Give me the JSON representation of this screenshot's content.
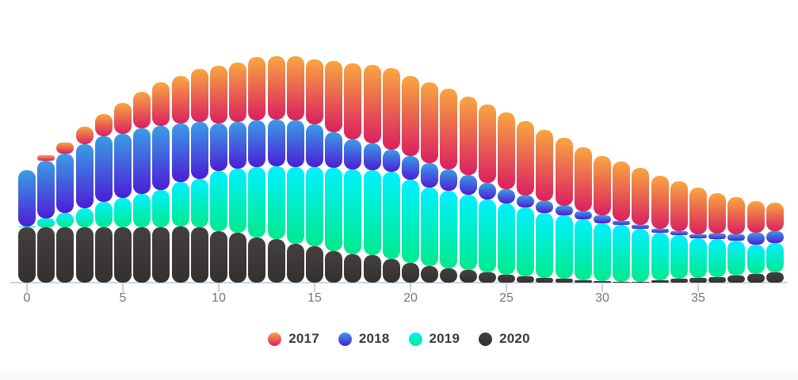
{
  "chart_data": {
    "type": "bar",
    "stacked": true,
    "title": "",
    "xlabel": "",
    "ylabel": "",
    "x": [
      0,
      1,
      2,
      3,
      4,
      5,
      6,
      7,
      8,
      9,
      10,
      11,
      12,
      13,
      14,
      15,
      16,
      17,
      18,
      19,
      20,
      21,
      22,
      23,
      24,
      25,
      26,
      27,
      28,
      29,
      30,
      31,
      32,
      33,
      34,
      35,
      36,
      37,
      38,
      39
    ],
    "x_tick_labels": [
      "0",
      "5",
      "10",
      "15",
      "20",
      "25",
      "30",
      "35"
    ],
    "x_tick_positions": [
      0,
      5,
      10,
      15,
      20,
      25,
      30,
      35
    ],
    "y_axis_visible": false,
    "ylim": [
      0,
      290
    ],
    "grid": false,
    "legend_position": "bottom",
    "stack_order_bottom_to_top": [
      "2020",
      "2019",
      "2018",
      "2017"
    ],
    "series": [
      {
        "name": "2017",
        "color_top": "#F9A640",
        "color_bottom": "#DA2060",
        "values": [
          0,
          7,
          14,
          22,
          28,
          39,
          46,
          55,
          60,
          67,
          73,
          75,
          80,
          80,
          81,
          82,
          90,
          96,
          99,
          103,
          101,
          102,
          102,
          99,
          99,
          97,
          94,
          90,
          86,
          81,
          75,
          75,
          72,
          67,
          63,
          59,
          51,
          47,
          40,
          36
        ]
      },
      {
        "name": "2018",
        "color_top": "#3B9CE5",
        "color_bottom": "#4B1ED6",
        "values": [
          71,
          73,
          75,
          81,
          83,
          81,
          83,
          81,
          74,
          72,
          60,
          59,
          59,
          59,
          59,
          54,
          45,
          38,
          34,
          28,
          30,
          31,
          27,
          25,
          21,
          18,
          15,
          15,
          12,
          10,
          10,
          5,
          5,
          5,
          5,
          5,
          7,
          8,
          15,
          15
        ]
      },
      {
        "name": "2019",
        "color_top": "#00F1FE",
        "color_bottom": "#00EA8C",
        "values": [
          1,
          11,
          18,
          24,
          32,
          37,
          42,
          47,
          56,
          61,
          76,
          81,
          89,
          92,
          97,
          100,
          105,
          107,
          107,
          110,
          105,
          99,
          98,
          95,
          92,
          90,
          87,
          82,
          80,
          77,
          73,
          72,
          67,
          60,
          55,
          50,
          48,
          44,
          37,
          37
        ]
      },
      {
        "name": "2020",
        "color_top": "#454040",
        "color_bottom": "#353030",
        "values": [
          70,
          70,
          70,
          70,
          70,
          70,
          70,
          70,
          71,
          70,
          65,
          63,
          57,
          55,
          49,
          46,
          40,
          36,
          35,
          30,
          25,
          21,
          18,
          16,
          13,
          10,
          8,
          6,
          5,
          3,
          2,
          1,
          1,
          3,
          5,
          6,
          7,
          9,
          11,
          13
        ]
      }
    ]
  },
  "axis": {
    "line_color": "#CBD4EC",
    "tick_color": "#C4CEEA",
    "label_color": "#757575"
  },
  "legend": {
    "items": [
      "2017",
      "2018",
      "2019",
      "2020"
    ],
    "label_color": "#3A3A3A"
  },
  "background": {
    "page": "#FFFFFF",
    "footer_strip": "#FAFAFA"
  }
}
